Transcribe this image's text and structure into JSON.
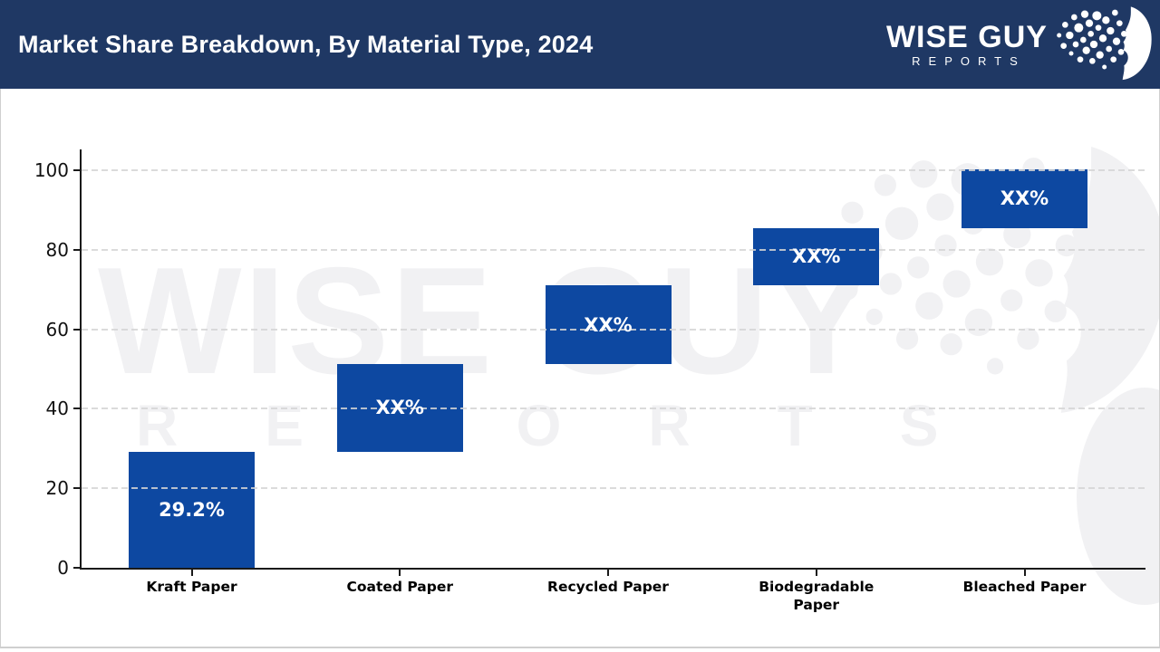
{
  "header": {
    "title": "Market Share Breakdown, By Material Type, 2024",
    "background": "#1f3864",
    "logo": {
      "line1": "WISE GUY",
      "line2": "REPORTS"
    }
  },
  "watermark": {
    "line1": "WISE GUY",
    "line2": "REPORTS"
  },
  "chart_data": {
    "type": "bar",
    "subtype": "floating-waterfall",
    "title": "Market Share Breakdown, By Material Type, 2024",
    "categories": [
      "Kraft Paper",
      "Coated Paper",
      "Recycled Paper",
      "Biodegradable Paper",
      "Bleached Paper"
    ],
    "segments": [
      {
        "category": "Kraft Paper",
        "from": 0,
        "to": 29.2,
        "label": "29.2%"
      },
      {
        "category": "Coated Paper",
        "from": 29.2,
        "to": 51.3,
        "label": "XX%"
      },
      {
        "category": "Recycled Paper",
        "from": 51.3,
        "to": 71.0,
        "label": "XX%"
      },
      {
        "category": "Biodegradable Paper",
        "from": 71.0,
        "to": 85.5,
        "label": "XX%"
      },
      {
        "category": "Bleached Paper",
        "from": 85.5,
        "to": 100.2,
        "label": "XX%"
      }
    ],
    "y_ticks": [
      "0",
      "20",
      "40",
      "60",
      "80",
      "100"
    ],
    "ylim": [
      0,
      105
    ],
    "xlabel": "",
    "ylabel": "",
    "grid": "horizontal-dashed",
    "legend": "none",
    "bar_color": "#0d48a1",
    "bar_label_color": "#ffffff",
    "grid_color": "#d9d9d9"
  }
}
